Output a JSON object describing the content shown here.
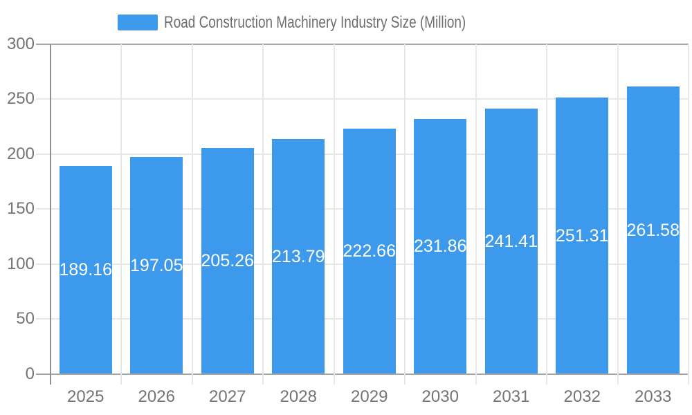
{
  "legend": {
    "label": "Road Construction Machinery Industry Size (Million)"
  },
  "chart_data": {
    "type": "bar",
    "title": "Road Construction Machinery Industry Size (Million)",
    "categories": [
      "2025",
      "2026",
      "2027",
      "2028",
      "2029",
      "2030",
      "2031",
      "2032",
      "2033"
    ],
    "values": [
      189.16,
      197.05,
      205.26,
      213.79,
      222.66,
      231.86,
      241.41,
      251.31,
      261.58
    ],
    "value_labels": [
      "189.16",
      "197.05",
      "205.26",
      "213.79",
      "222.66",
      "231.86",
      "241.41",
      "251.31",
      "261.58"
    ],
    "xlabel": "",
    "ylabel": "",
    "ylim": [
      0,
      300
    ],
    "y_ticks": [
      0,
      50,
      100,
      150,
      200,
      250,
      300
    ],
    "grid": true,
    "legend_position": "top",
    "colors": {
      "bar": "#3C99EC",
      "value_label": "#ffffff",
      "axis_tick_label": "#747474",
      "legend_text": "#6e6e6e",
      "grid_light": "#e7e7e7",
      "axis_border_dark": "#a6a6a6",
      "y_axis_line": "#909090",
      "background": "#ffffff"
    }
  }
}
